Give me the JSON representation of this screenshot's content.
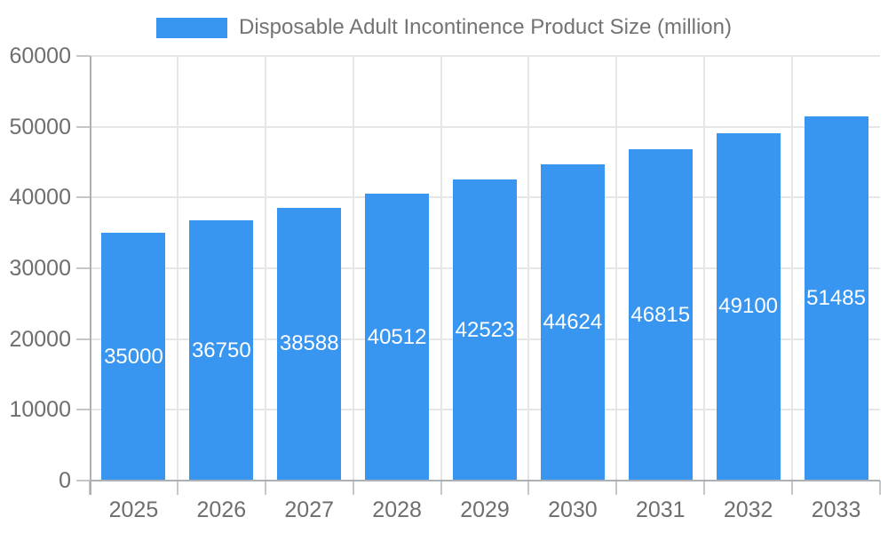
{
  "chart_data": {
    "type": "bar",
    "title": "Disposable Adult Incontinence Product Size (million)",
    "legend_position": "top",
    "categories": [
      "2025",
      "2026",
      "2027",
      "2028",
      "2029",
      "2030",
      "2031",
      "2032",
      "2033"
    ],
    "series": [
      {
        "name": "Disposable Adult Incontinence Product Size (million)",
        "values": [
          35000,
          36750,
          38588,
          40512,
          42523,
          44624,
          46815,
          49100,
          51485
        ]
      }
    ],
    "value_labels": [
      "35000",
      "36750",
      "38588",
      "40512",
      "42523",
      "44624",
      "46815",
      "49100",
      "51485"
    ],
    "ylim": [
      0,
      60000
    ],
    "ytick_step": 10000,
    "yticks": [
      "0",
      "10000",
      "20000",
      "30000",
      "40000",
      "50000",
      "60000"
    ],
    "grid": true,
    "background": "#FFFFFF"
  },
  "colors": {
    "bar": "#3896F0",
    "grid": "#E6E6E6",
    "axis": "#ACAFB4",
    "tick": "#C6C6C6",
    "tick_label": "#6E6E6E",
    "legend_text": "#737373",
    "value_label": "#FFFFFF"
  }
}
